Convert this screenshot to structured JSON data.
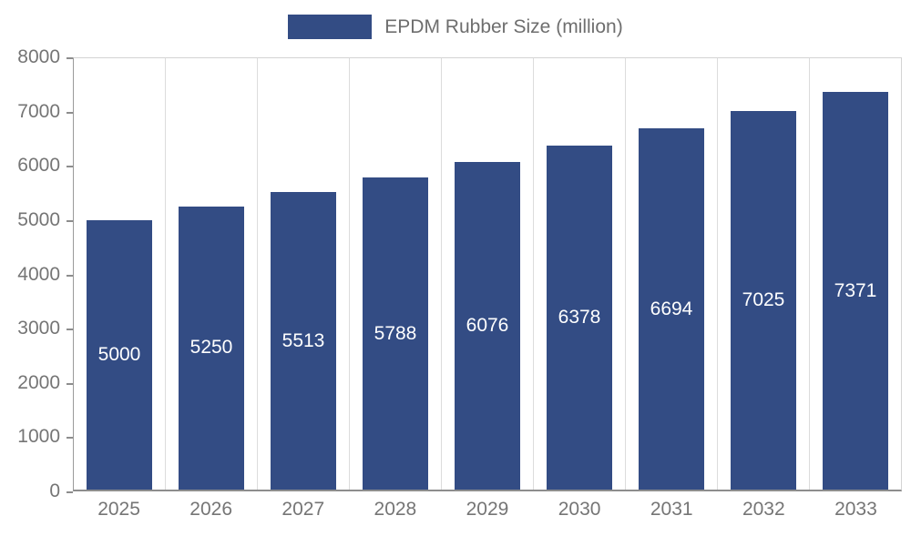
{
  "chart_data": {
    "type": "bar",
    "title": "EPDM Rubber Size (million)",
    "legend": {
      "label": "EPDM Rubber Size (million)",
      "position": "top-center"
    },
    "categories": [
      "2025",
      "2026",
      "2027",
      "2028",
      "2029",
      "2030",
      "2031",
      "2032",
      "2033"
    ],
    "series": [
      {
        "name": "EPDM Rubber Size (million)",
        "values": [
          5000,
          5250,
          5513,
          5788,
          6076,
          6378,
          6694,
          7025,
          7371
        ]
      }
    ],
    "xlabel": "",
    "ylabel": "",
    "ylim": [
      0,
      8000
    ],
    "yticks": [
      0,
      1000,
      2000,
      3000,
      4000,
      5000,
      6000,
      7000,
      8000
    ],
    "grid": "vertical",
    "bar_color": "#334c84",
    "value_label_color": "#ffffff",
    "axis_label_color": "#757575"
  }
}
